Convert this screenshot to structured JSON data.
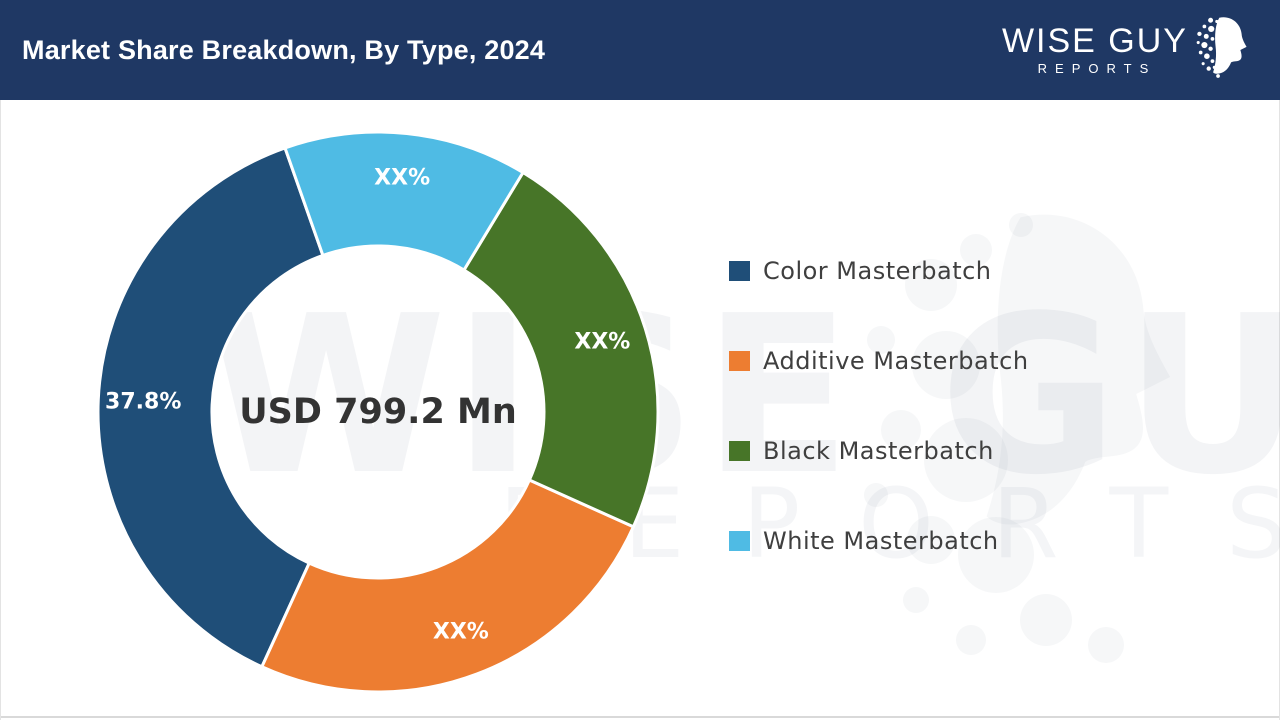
{
  "header": {
    "title": "Market Share Breakdown, By Type, 2024",
    "bg_color": "#1f3864",
    "logo": {
      "line1": "WISE GUY",
      "line2": "REPORTS"
    }
  },
  "watermark": {
    "line1": "WISE GUY",
    "line2": "REPORTS"
  },
  "chart_data": {
    "type": "donut",
    "title": "Market Share Breakdown, By Type, 2024",
    "center_label": "USD 799.2 Mn",
    "legend_position": "right",
    "angles_clockwise_from_top_deg": true,
    "segments": [
      {
        "name": "Color Masterbatch",
        "color": "#1F4E78",
        "label": "37.8%",
        "pct": 37.8,
        "start_angle": 204.5,
        "end_angle": 340.6
      },
      {
        "name": "Additive Masterbatch",
        "color": "#ED7D31",
        "label": "XX%",
        "start_angle": 114.2,
        "end_angle": 204.5
      },
      {
        "name": "Black Masterbatch",
        "color": "#477528",
        "label": "XX%",
        "start_angle": 31.2,
        "end_angle": 114.2
      },
      {
        "name": "White Masterbatch",
        "color": "#4FBBE4",
        "label": "XX%",
        "start_angle": -19.4,
        "end_angle": 31.2
      }
    ],
    "legend": [
      "Color Masterbatch",
      "Additive Masterbatch",
      "Black Masterbatch",
      "White Masterbatch"
    ]
  }
}
